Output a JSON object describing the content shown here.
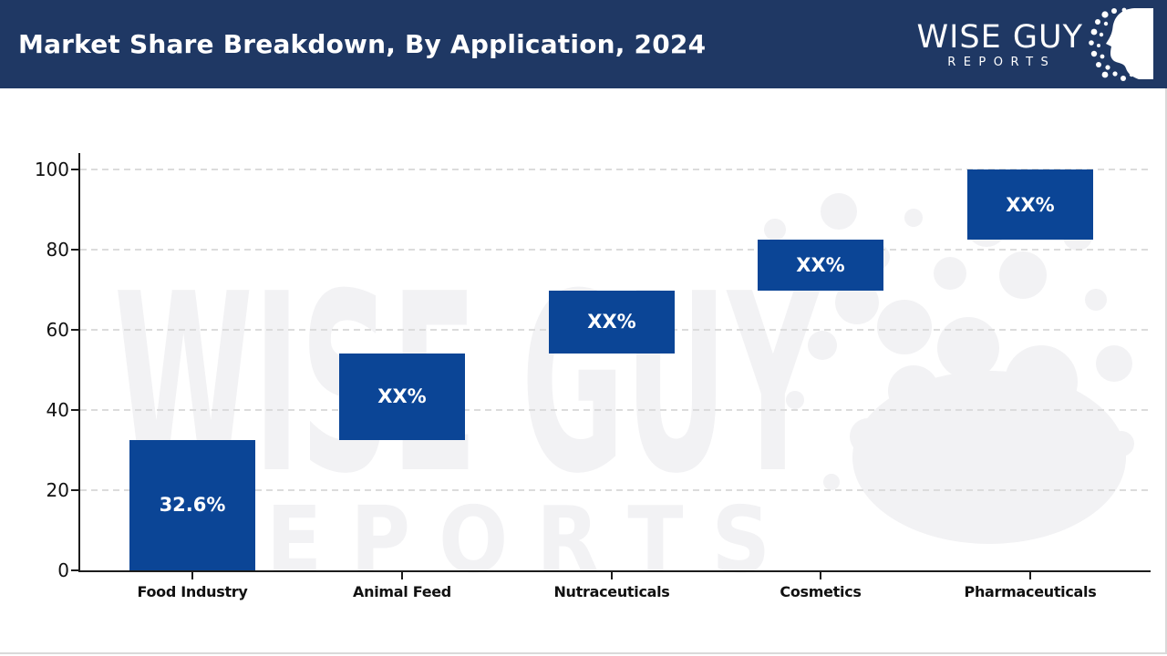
{
  "header": {
    "title": "Market Share Breakdown, By Application, 2024",
    "logo": {
      "wordmark": "WISE GUY",
      "subtext": "REPORTS",
      "head_icon": "dotted-face-profile"
    }
  },
  "watermark": {
    "line1": "WISE GUY",
    "line2": "R E P O R T S"
  },
  "chart_data": {
    "type": "waterfall",
    "title": "Market Share Breakdown, By Application, 2024",
    "categories": [
      "Food Industry",
      "Animal Feed",
      "Nutraceuticals",
      "Cosmetics",
      "Pharmaceuticals"
    ],
    "segments": [
      {
        "category": "Food Industry",
        "start": 0,
        "end": 32.6,
        "label": "32.6%"
      },
      {
        "category": "Animal Feed",
        "start": 32.6,
        "end": 54.2,
        "label": "XX%"
      },
      {
        "category": "Nutraceuticals",
        "start": 54.2,
        "end": 69.8,
        "label": "XX%"
      },
      {
        "category": "Cosmetics",
        "start": 69.8,
        "end": 82.5,
        "label": "XX%"
      },
      {
        "category": "Pharmaceuticals",
        "start": 82.5,
        "end": 100,
        "label": "XX%"
      }
    ],
    "yticks": [
      0,
      20,
      40,
      60,
      80,
      100
    ],
    "ylim": [
      0,
      104
    ],
    "xlabel": "",
    "ylabel": "",
    "grid": "horizontal-dashed",
    "legend": "none",
    "bar_color": "#0b4596",
    "bar_label_color": "#ffffff",
    "axis_color": "#1c1c1c",
    "grid_color": "#dcdcdc"
  },
  "colors": {
    "header_bg": "#1f3864",
    "header_text": "#ffffff",
    "watermark": "#f2f2f4",
    "frame_border": "#d9d9d9",
    "tick_label": "#111111"
  }
}
